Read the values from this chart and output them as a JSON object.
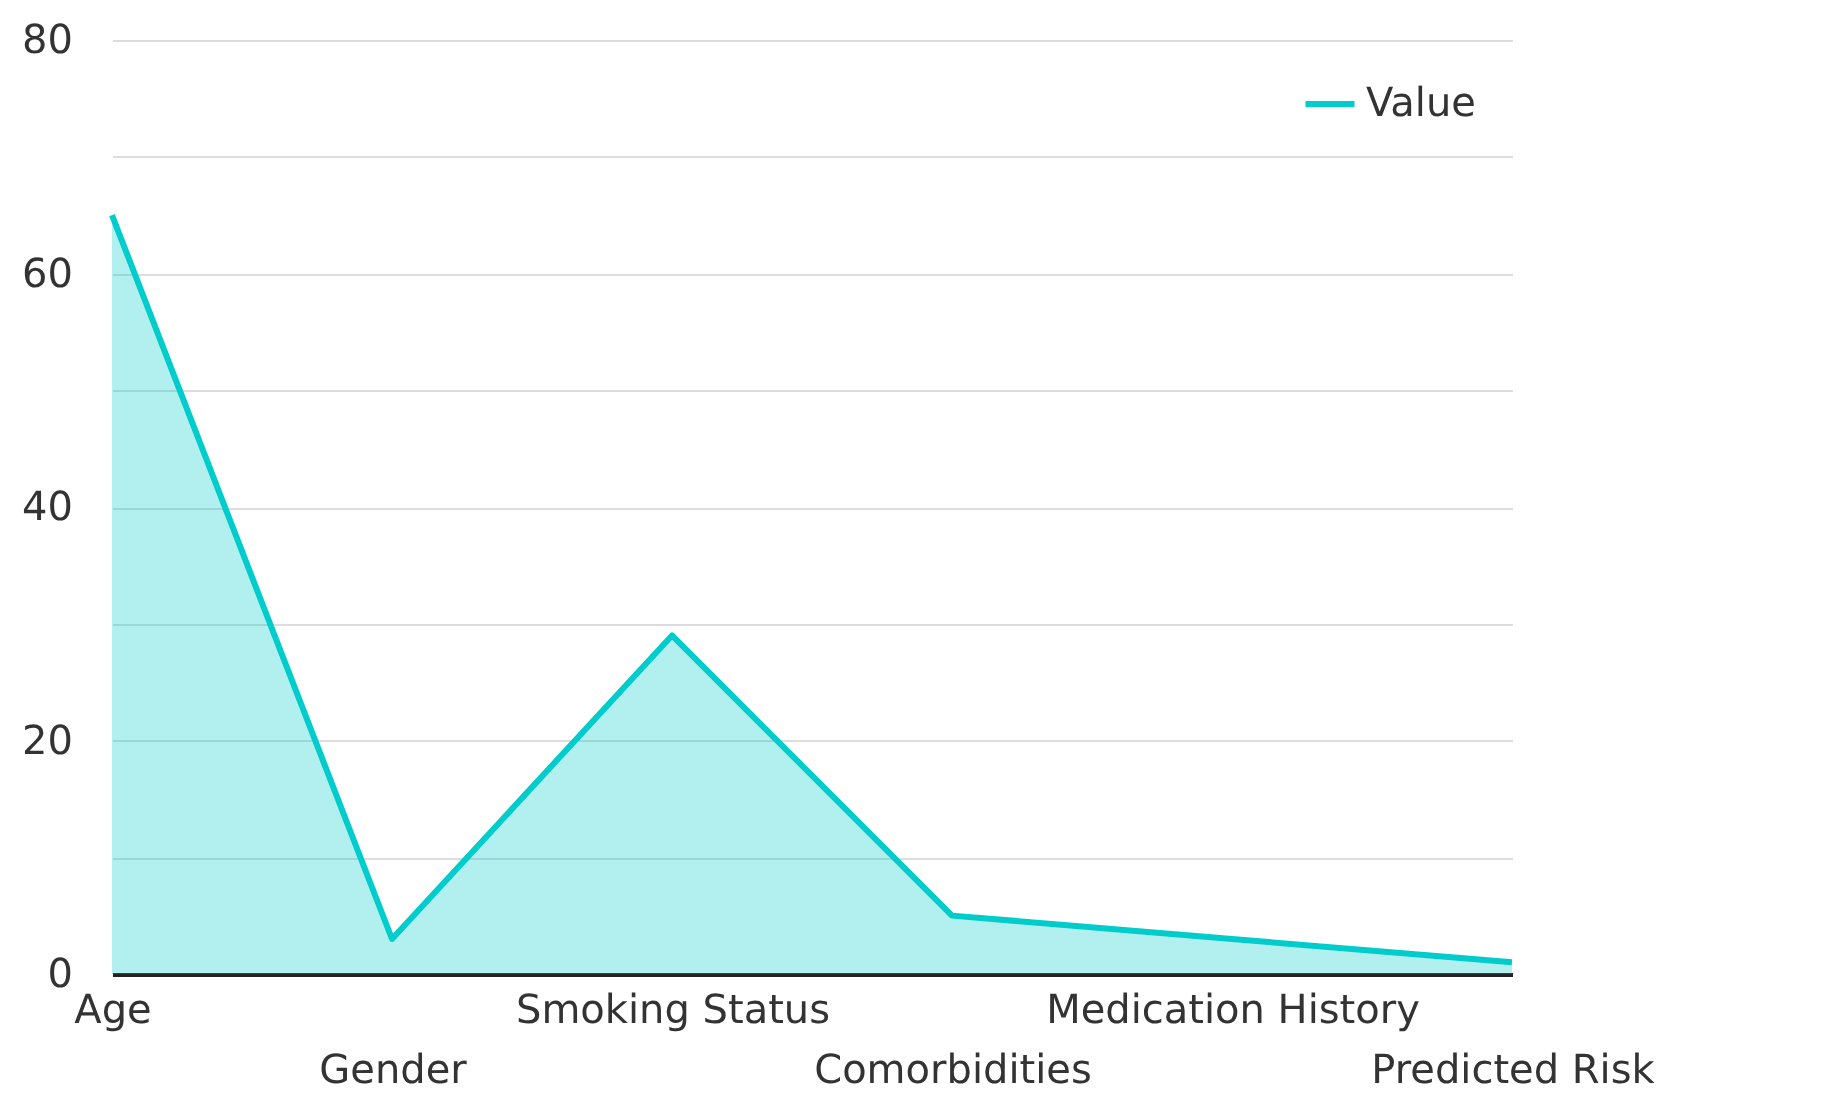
{
  "chart_data": {
    "type": "area",
    "categories": [
      "Age",
      "Gender",
      "Smoking Status",
      "Comorbidities",
      "Medication History",
      "Predicted Risk"
    ],
    "series": [
      {
        "name": "Value",
        "color": "#00cccc",
        "values": [
          65,
          3,
          29,
          5,
          3,
          1
        ]
      }
    ],
    "ylim": [
      0,
      80
    ],
    "yticks": [
      0,
      {
        "value": 10,
        "label": null
      },
      20,
      {
        "value": 30,
        "label": null
      },
      40,
      {
        "value": 50,
        "label": null
      },
      60,
      {
        "value": 70,
        "label": null
      },
      80
    ],
    "grid": "y",
    "legend": "top right"
  }
}
